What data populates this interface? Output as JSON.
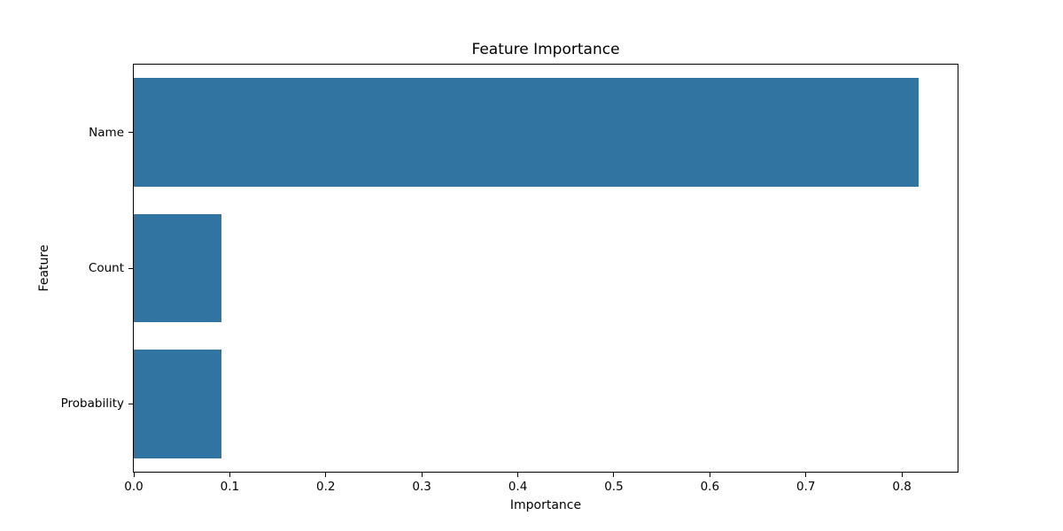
{
  "chart_data": {
    "type": "bar",
    "orientation": "horizontal",
    "title": "Feature Importance",
    "xlabel": "Importance",
    "ylabel": "Feature",
    "categories": [
      "Name",
      "Count",
      "Probability"
    ],
    "values": [
      0.817,
      0.0915,
      0.0915
    ],
    "xlim": [
      0,
      0.858
    ],
    "xticks": [
      0.0,
      0.1,
      0.2,
      0.3,
      0.4,
      0.5,
      0.6,
      0.7,
      0.8
    ],
    "xtick_labels": [
      "0.0",
      "0.1",
      "0.2",
      "0.3",
      "0.4",
      "0.5",
      "0.6",
      "0.7",
      "0.8"
    ],
    "bar_color": "#3274a1",
    "bar_height_fraction": 0.8,
    "grid": false,
    "legend_position": "none",
    "background_color": "#ffffff",
    "spine_color": "#000000"
  }
}
